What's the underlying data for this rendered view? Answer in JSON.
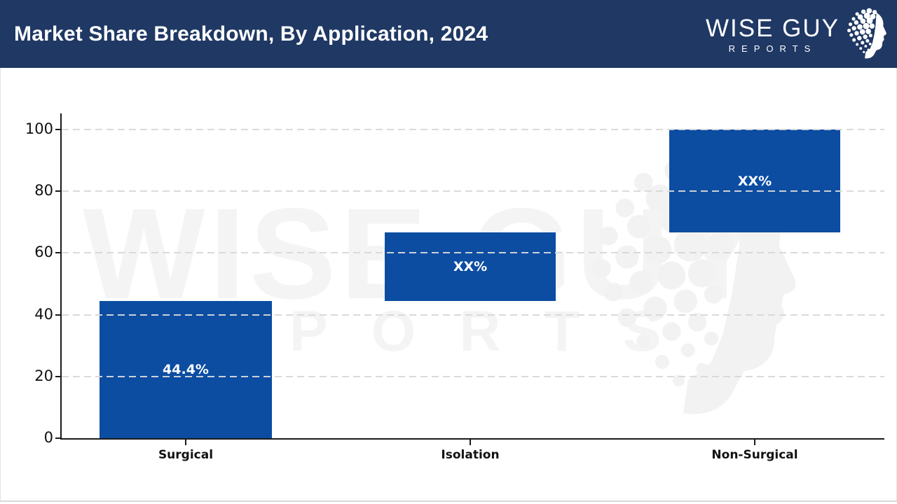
{
  "header": {
    "title": "Market Share Breakdown, By Application, 2024",
    "bg_color": "#1f3864",
    "text_color": "#ffffff",
    "logo": {
      "wordmark": "WISE GUY",
      "subtext": "REPORTS",
      "face_icon": "dotted-head-profile"
    }
  },
  "watermark": {
    "wordmark": "WISE GUY",
    "subtext": "REPORTS",
    "color": "#f3f3f3"
  },
  "chart_data": {
    "type": "bar",
    "variant": "waterfall",
    "title": "Market Share Breakdown, By Application, 2024",
    "categories": [
      "Surgical",
      "Isolation",
      "Non-Surgical"
    ],
    "segments": [
      {
        "category": "Surgical",
        "start": 0,
        "end": 44.4,
        "label": "44.4%"
      },
      {
        "category": "Isolation",
        "start": 44.4,
        "end": 66.6,
        "label": "XX%"
      },
      {
        "category": "Non-Surgical",
        "start": 66.6,
        "end": 100,
        "label": "XX%"
      }
    ],
    "xlabel": "",
    "ylabel": "",
    "yticks": [
      0,
      20,
      40,
      60,
      80,
      100
    ],
    "ylim": [
      0,
      105
    ],
    "grid": {
      "show": true,
      "style": "dashed",
      "axis": "y",
      "color": "#dcdcdc"
    },
    "bar_color": "#0c4da2",
    "bar_label_color": "#ffffff",
    "axis_color": "#1a1a1a",
    "tick_label_color": "#111111"
  }
}
